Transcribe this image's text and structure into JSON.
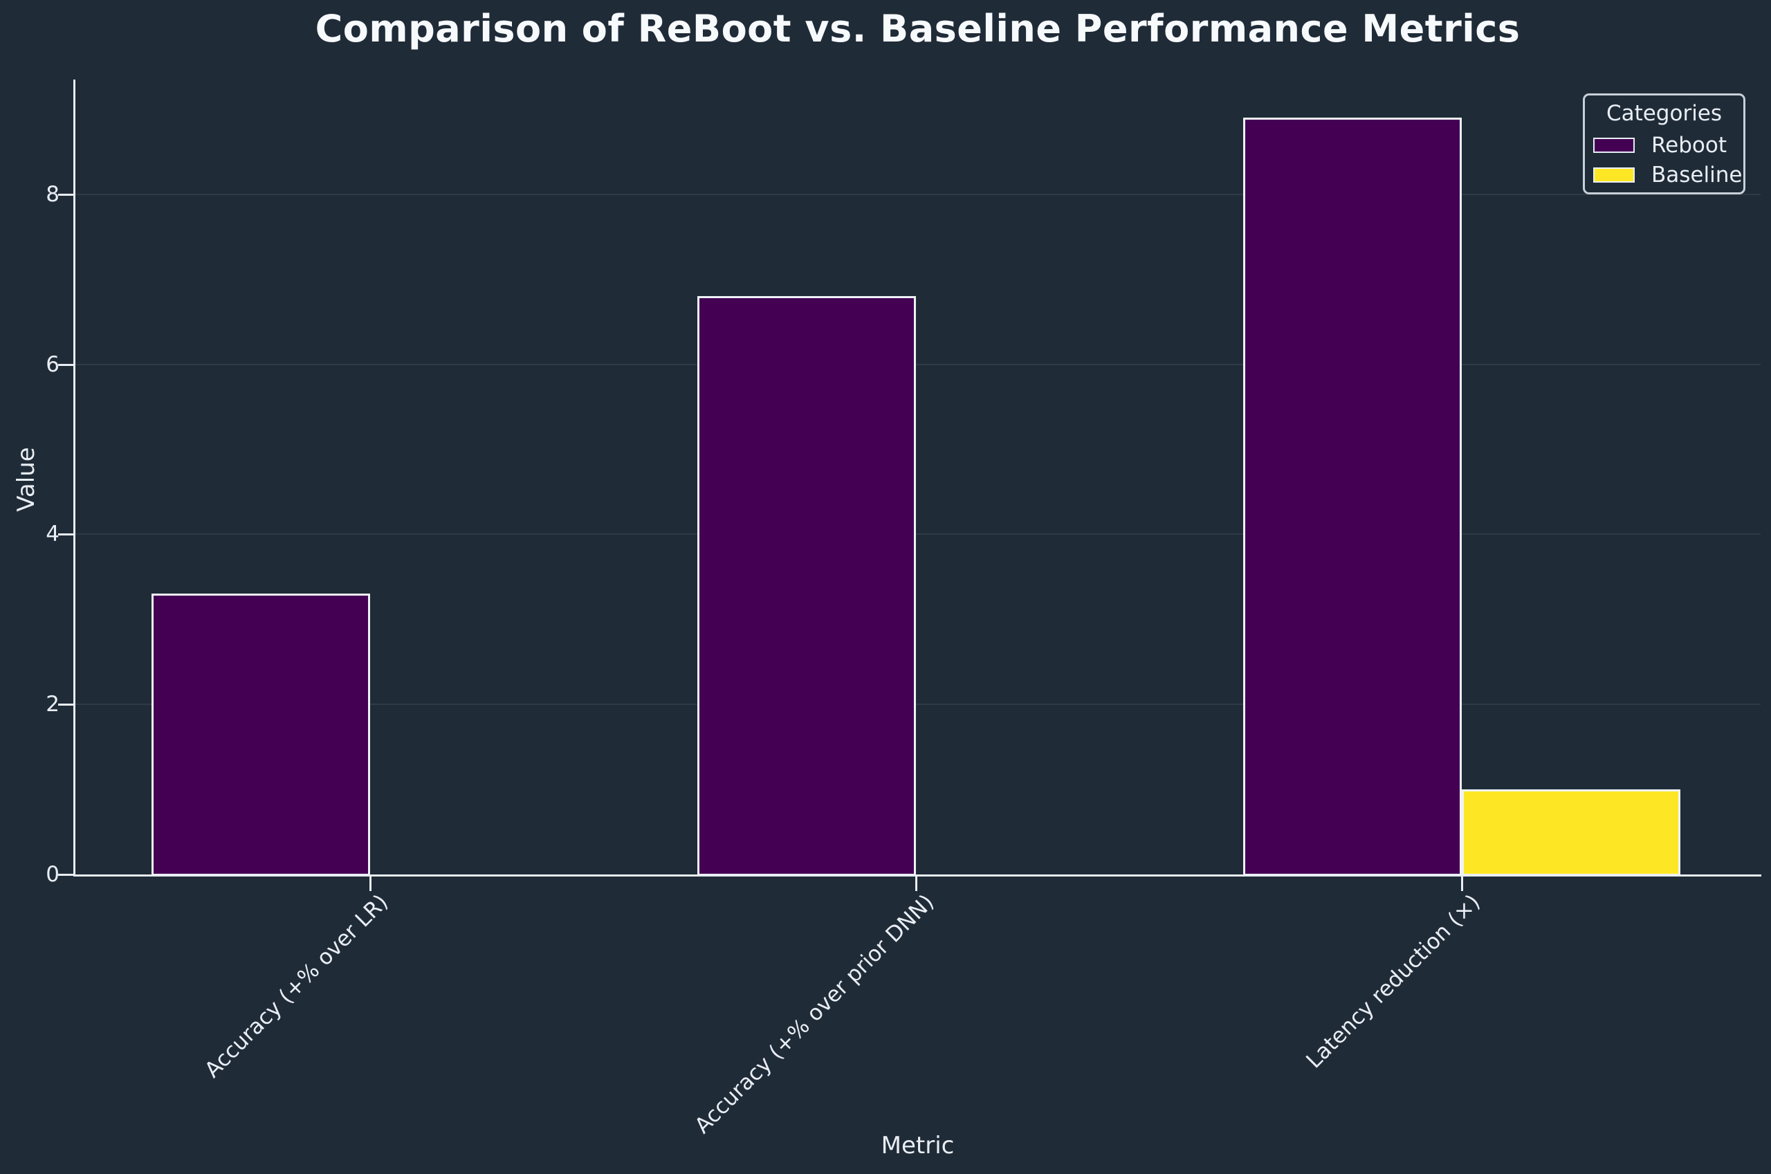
{
  "title": "Comparison of ReBoot vs. Baseline Performance Metrics",
  "chart_data": {
    "type": "bar",
    "title": "Comparison of ReBoot vs. Baseline Performance Metrics",
    "xlabel": "Metric",
    "ylabel": "Value",
    "categories": [
      "Accuracy (+% over LR)",
      "Accuracy (+% over prior DNN)",
      "Latency reduction (×)"
    ],
    "series": [
      {
        "name": "Reboot",
        "color": "#440154",
        "values": [
          3.3,
          6.8,
          8.9
        ]
      },
      {
        "name": "Baseline",
        "color": "#fde725",
        "values": [
          0,
          0,
          1.0
        ]
      }
    ],
    "ylim": [
      0,
      9.35
    ],
    "yticks": [
      0,
      2,
      4,
      6,
      8
    ],
    "grid": true,
    "xtick_rotation": 45,
    "legend_title": "Categories",
    "legend_position": "upper right"
  },
  "colors": {
    "background": "#202b38",
    "text": "#e9eef4",
    "title_text": "#f7fafc",
    "spine": "#e9eef4",
    "bar_edge": "#eef2f6",
    "gridline": "rgba(233,238,244,0.08)",
    "legend_border": "#c8d0d8",
    "reboot": "#440154",
    "baseline": "#fde725"
  }
}
